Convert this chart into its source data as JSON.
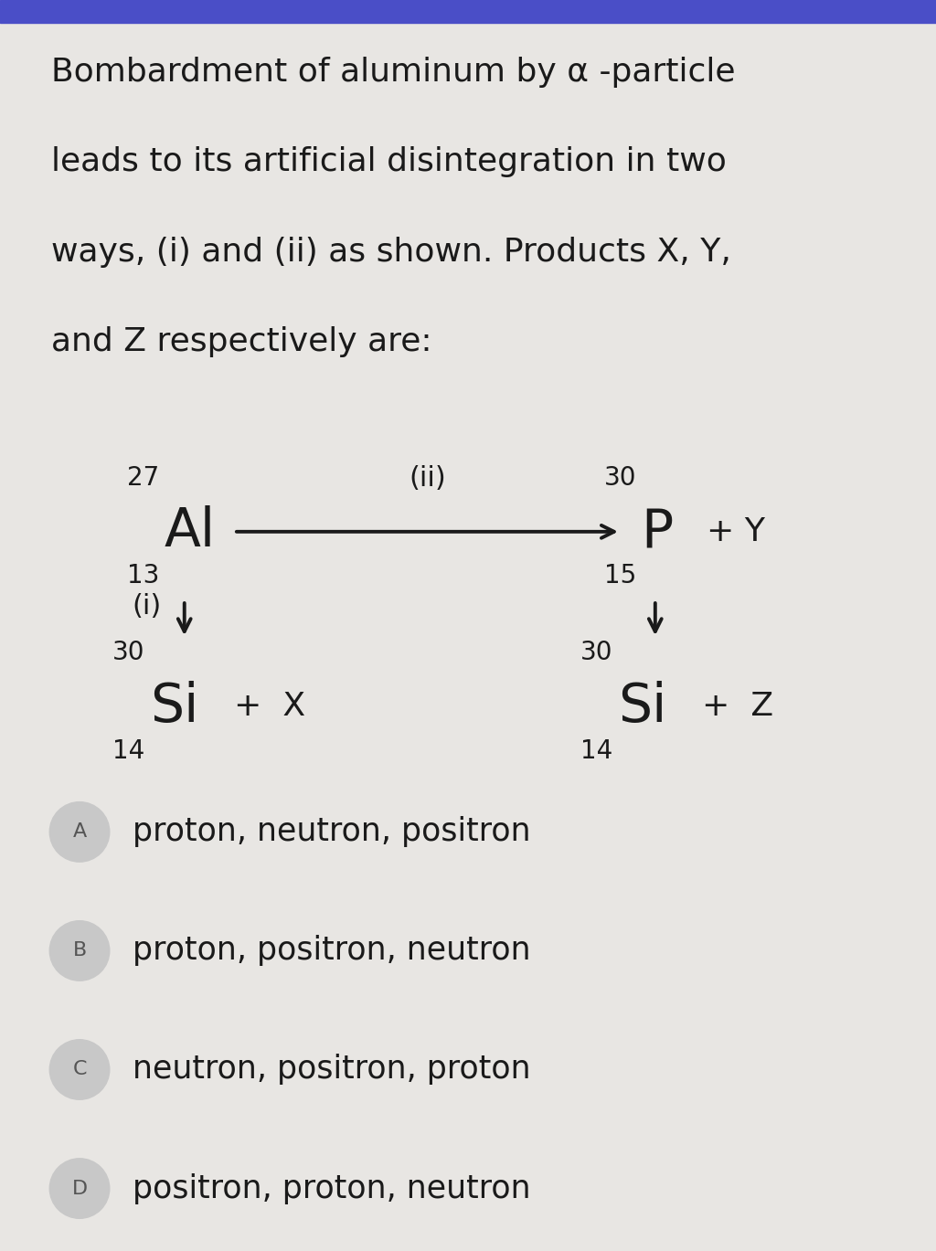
{
  "bg_color": "#e8e6e3",
  "text_color": "#1a1a1a",
  "title_lines": [
    "Bombardment of aluminum by α -particle",
    "leads to its artificial disintegration in two",
    "ways, (i) and (ii) as shown. Products X, Y,",
    "and Z respectively are:"
  ],
  "options": [
    {
      "label": "A",
      "text": "proton, neutron, positron"
    },
    {
      "label": "B",
      "text": "proton, positron, neutron"
    },
    {
      "label": "C",
      "text": "neutron, positron, proton"
    },
    {
      "label": "D",
      "text": "positron, proton, neutron"
    }
  ],
  "circle_color": "#c8c8c8",
  "top_bar_color": "#4a4ec7",
  "top_bar_height": 0.018
}
